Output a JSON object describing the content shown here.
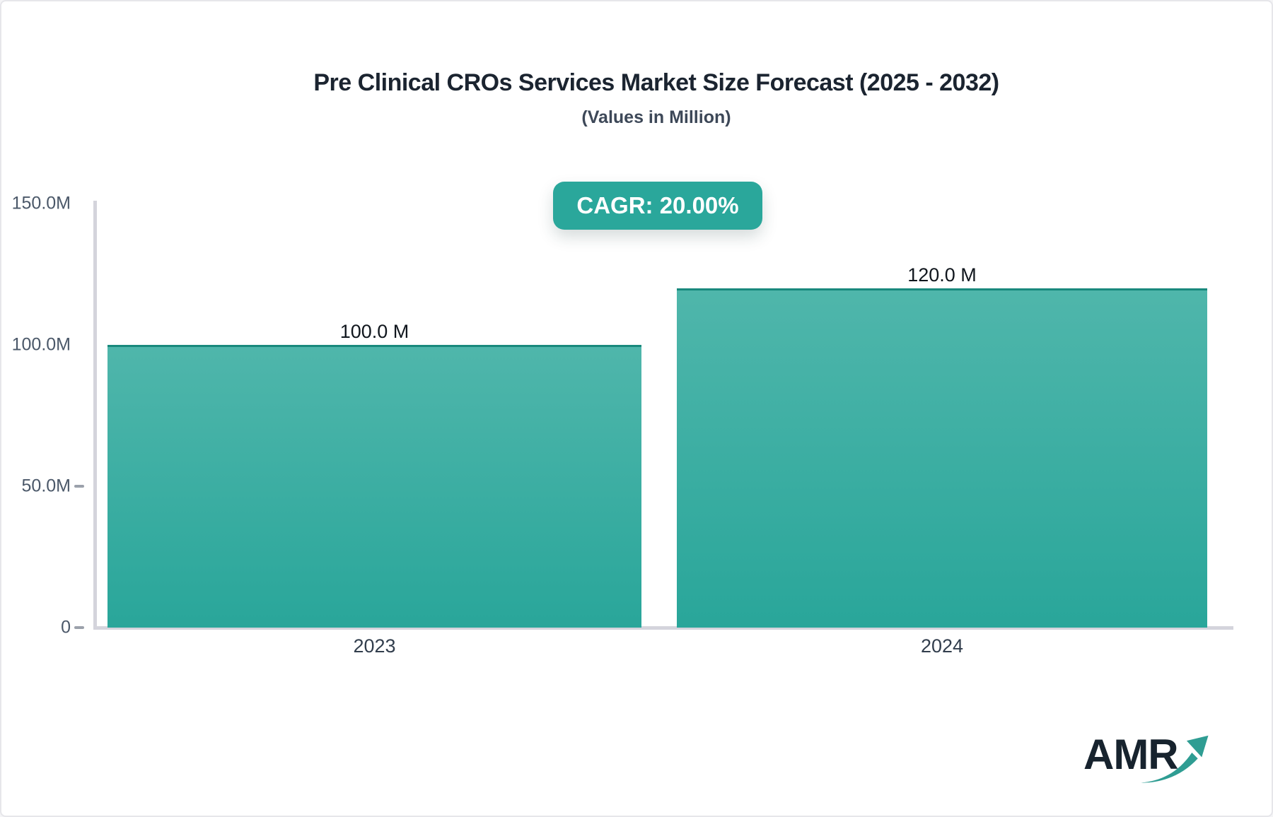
{
  "header": {
    "title": "Pre Clinical CROs Services Market Size Forecast (2025 - 2032)",
    "subtitle": "(Values in Million)"
  },
  "badge": {
    "label": "CAGR: 20.00%",
    "background": "#2aa79b",
    "text_color": "#ffffff"
  },
  "chart_data": {
    "type": "bar",
    "title": "Pre Clinical CROs Services Market Size Forecast (2025 - 2032)",
    "subtitle": "(Values in Million)",
    "unit": "Million",
    "categories": [
      "2023",
      "2024"
    ],
    "values": [
      100.0,
      120.0
    ],
    "value_labels": [
      "100.0 M",
      "120.0 M"
    ],
    "cagr_percent": 20.0,
    "ylim": [
      0,
      150
    ],
    "yticks": [
      {
        "label": "150.0M",
        "value": 150,
        "dash": false
      },
      {
        "label": "100.0M",
        "value": 100,
        "dash": false
      },
      {
        "label": "50.0M",
        "value": 50,
        "dash": true
      },
      {
        "label": "0",
        "value": 0,
        "dash": true
      }
    ],
    "grid": false,
    "legend": false,
    "bar_color_top": "#4fb6ab",
    "bar_color_bottom": "#29a69a",
    "bar_border_top": "#19897d",
    "axis_color": "#d4d4dc",
    "xlabel": "",
    "ylabel": ""
  },
  "logo": {
    "text": "AMR",
    "text_color": "#17232e",
    "arrow_color": "#2f9d93"
  }
}
